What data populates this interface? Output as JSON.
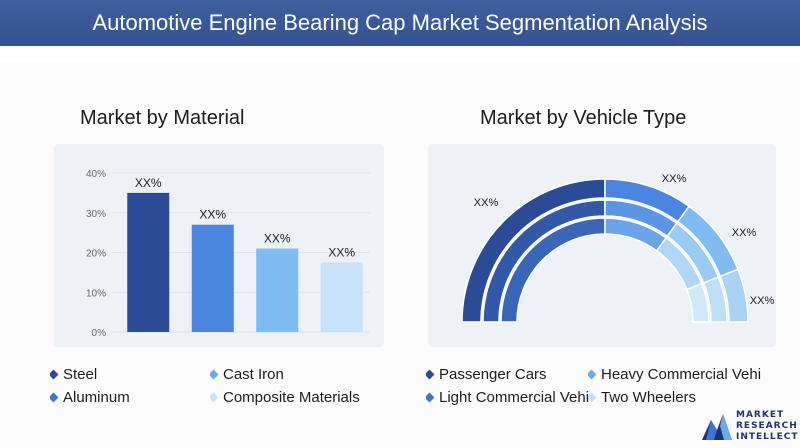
{
  "page": {
    "title": "Automotive Engine Bearing Cap Market Segmentation Analysis"
  },
  "logo": {
    "line1": "MARKET",
    "line2": "RESEARCH",
    "line3": "INTELLECT"
  },
  "chart_data": [
    {
      "type": "bar",
      "title": "Market by Material",
      "categories": [
        "Steel",
        "Cast Iron",
        "Aluminum",
        "Composite Materials"
      ],
      "values": [
        35,
        27,
        21,
        17.5
      ],
      "data_labels": [
        "XX%",
        "XX%",
        "XX%",
        "XX%"
      ],
      "yticks": [
        "0%",
        "10%",
        "20%",
        "30%",
        "40%"
      ],
      "ylim": [
        0,
        40
      ],
      "colors": [
        "#2b4b96",
        "#4a86e0",
        "#80bcf2",
        "#c7e2f8"
      ],
      "legend": [
        {
          "label": "Steel",
          "color": "#2b4b96"
        },
        {
          "label": "Cast Iron",
          "color": "#6aabef"
        },
        {
          "label": "Aluminum",
          "color": "#3f74d6"
        },
        {
          "label": "Composite Materials",
          "color": "#c7e2f8"
        }
      ]
    },
    {
      "type": "pie",
      "subtype": "semi-donut",
      "title": "Market by Vehicle Type",
      "categories": [
        "Passenger Cars",
        "Light Commercial Vehicles",
        "Heavy Commercial Vehicles",
        "Two Wheelers"
      ],
      "values": [
        50,
        20,
        18,
        12
      ],
      "data_labels": [
        "XX%",
        "XX%",
        "XX%",
        "XX%"
      ],
      "colors": [
        "#2b4b96",
        "#3f74d6",
        "#80bcf2",
        "#b9dcf6"
      ],
      "legend": [
        {
          "label": "Passenger Cars",
          "color": "#2b4b96"
        },
        {
          "label": "Heavy Commercial Vehi",
          "color": "#6aabef"
        },
        {
          "label": "Light Commercial Vehi",
          "color": "#3f74d6"
        },
        {
          "label": "Two Wheelers",
          "color": "#c7e2f8"
        }
      ]
    }
  ]
}
